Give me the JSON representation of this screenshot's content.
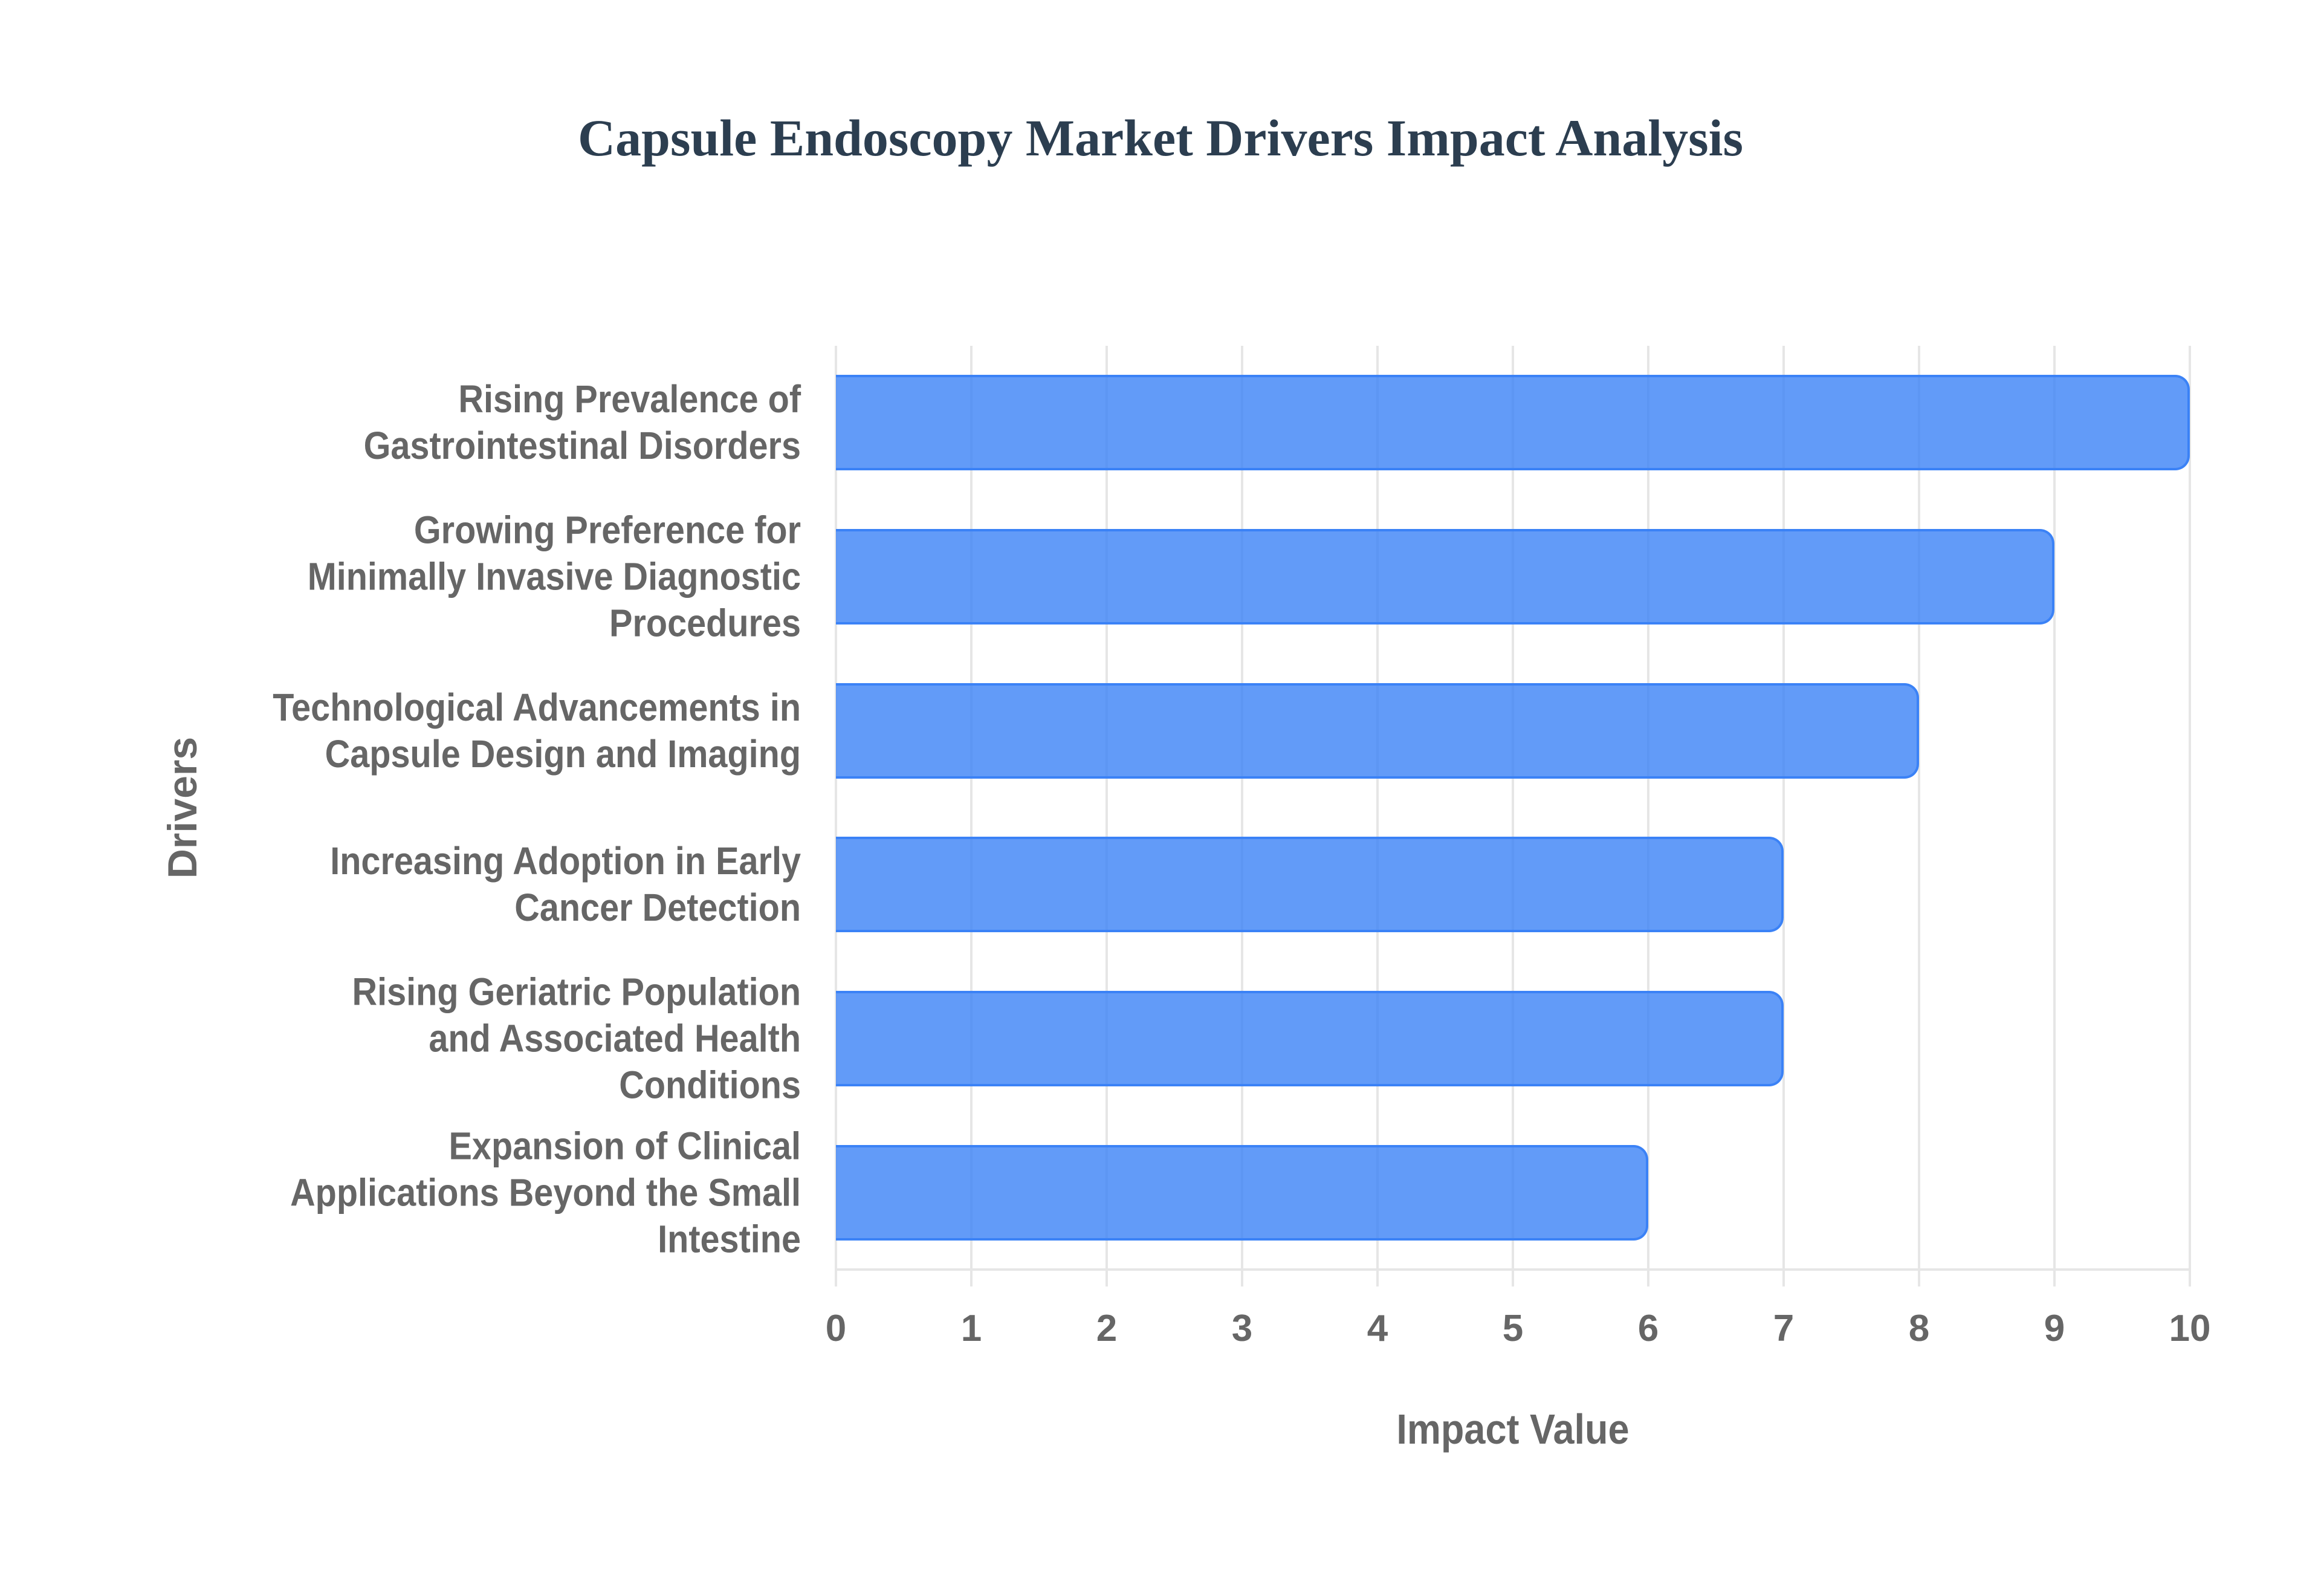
{
  "title": "Capsule Endoscopy Market Drivers Impact Analysis",
  "colors": {
    "title": "#2c3e50",
    "bar_fill": "rgba(59,130,246,0.8)",
    "bar_border": "#3b82f6",
    "grid": "#e6e6e6",
    "axis_text": "#666666"
  },
  "chart_data": {
    "type": "bar",
    "orientation": "horizontal",
    "title": "Capsule Endoscopy Market Drivers Impact Analysis",
    "xlabel": "Impact Value",
    "ylabel": "Drivers",
    "xlim": [
      0,
      10
    ],
    "x_ticks": [
      "0",
      "1",
      "2",
      "3",
      "4",
      "5",
      "6",
      "7",
      "8",
      "9",
      "10"
    ],
    "grid": true,
    "legend": null,
    "categories": [
      "Rising Prevalence of Gastrointestinal Disorders",
      "Growing Preference for Minimally Invasive Diagnostic Procedures",
      "Technological Advancements in Capsule Design and Imaging",
      "Increasing Adoption in Early Cancer Detection",
      "Rising Geriatric Population and Associated Health Conditions",
      "Expansion of Clinical Applications Beyond the Small Intestine"
    ],
    "category_lines": [
      [
        "Rising Prevalence of",
        "Gastrointestinal Disorders"
      ],
      [
        "Growing Preference for",
        "Minimally Invasive Diagnostic",
        "Procedures"
      ],
      [
        "Technological Advancements in",
        "Capsule Design and Imaging"
      ],
      [
        "Increasing Adoption in Early",
        "Cancer Detection"
      ],
      [
        "Rising Geriatric Population",
        "and Associated Health",
        "Conditions"
      ],
      [
        "Expansion of Clinical",
        "Applications Beyond the Small",
        "Intestine"
      ]
    ],
    "values": [
      10,
      9,
      8,
      7,
      7,
      6
    ]
  }
}
